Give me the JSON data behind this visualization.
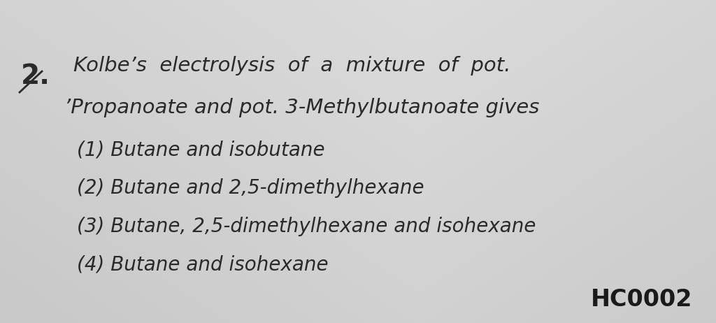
{
  "background_color": "#c8c8c8",
  "question_number": "2.",
  "slash": "/",
  "question_line1": "Kolbe’s  electrolysis  of  a  mixture  of  pot.",
  "question_line2": "’Propanoate and pot. 3-Methylbutanoate gives",
  "options": [
    "(1) Butane and isobutane",
    "(2) Butane and 2,5-dimethylhexane",
    "(3) Butane, 2,5-dimethylhexane and isohexane",
    "(4) Butane and isohexane"
  ],
  "code": "HC0002",
  "text_color": "#2a2a2a",
  "code_color": "#1a1a1a",
  "question_fontsize": 21,
  "option_fontsize": 20,
  "code_fontsize": 24,
  "number_fontsize": 28,
  "italic": true
}
